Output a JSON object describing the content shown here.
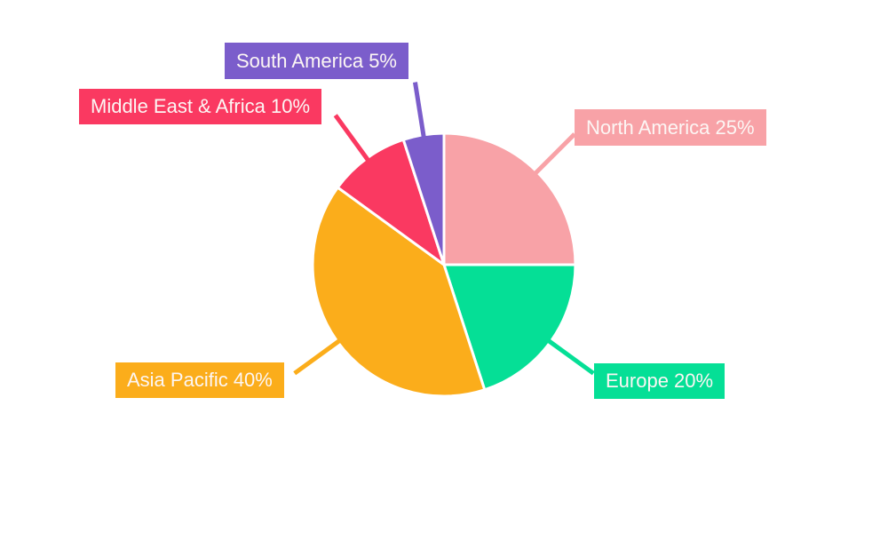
{
  "page": {
    "background": "#FFFFFF",
    "title": ""
  },
  "chart_data": {
    "type": "pie",
    "title": "",
    "categories": [
      "North America",
      "Europe",
      "Asia Pacific",
      "Middle East & Africa",
      "South America"
    ],
    "values": [
      25,
      20,
      40,
      10,
      5
    ],
    "unit": "%",
    "direction": "clockwise",
    "start_angle_deg": 0,
    "legend_position": "external-callout-labels",
    "slice_border_color": "#FFFFFF",
    "label_text_color": "#FCF6F4",
    "slices": [
      {
        "slug": "north-america",
        "label": "North America",
        "value": 25,
        "display": "North America 25%",
        "color": "#F8A2A7"
      },
      {
        "slug": "europe",
        "label": "Europe",
        "value": 20,
        "display": "Europe 20%",
        "color": "#05DF96"
      },
      {
        "slug": "asia-pacific",
        "label": "Asia Pacific",
        "value": 40,
        "display": "Asia Pacific 40%",
        "color": "#FBAD1B"
      },
      {
        "slug": "middle-east-africa",
        "label": "Middle East & Africa",
        "value": 10,
        "display": "Middle East & Africa 10%",
        "color": "#FA3961"
      },
      {
        "slug": "south-america",
        "label": "South America",
        "value": 5,
        "display": "South America 5%",
        "color": "#7B5DCB"
      }
    ]
  }
}
